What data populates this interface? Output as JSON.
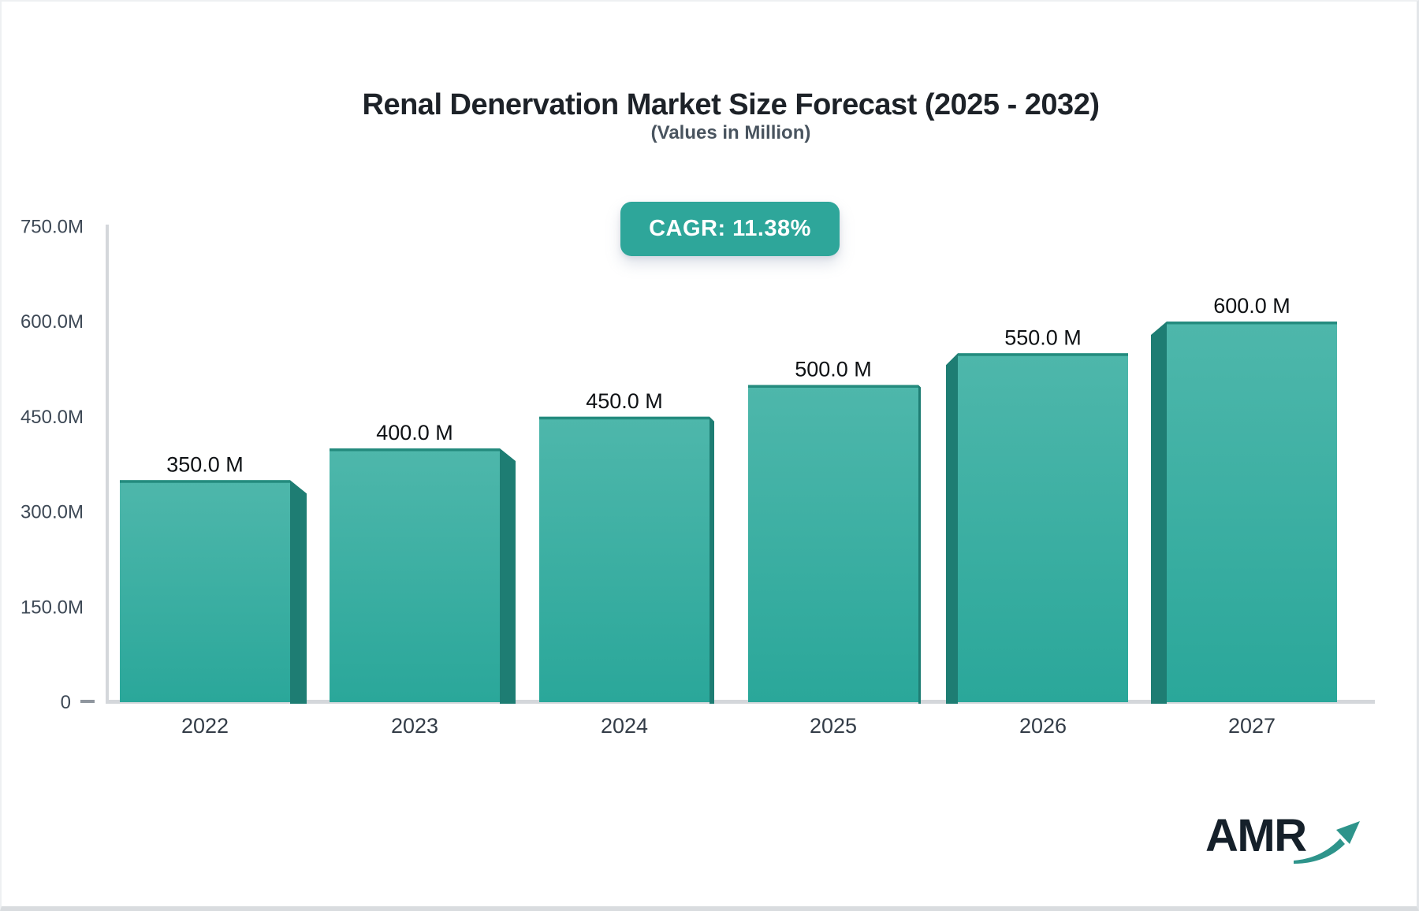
{
  "header": {
    "title": "Renal Denervation Market Size Forecast (2025 - 2032)",
    "subtitle": "(Values in Million)",
    "cagr_badge": "CAGR: 11.38%"
  },
  "chart_data": {
    "type": "bar",
    "title": "Renal Denervation Market Size Forecast (2025 - 2032)",
    "subtitle": "(Values in Million)",
    "categories": [
      "2022",
      "2023",
      "2024",
      "2025",
      "2026",
      "2027"
    ],
    "values": [
      350.0,
      400.0,
      450.0,
      500.0,
      550.0,
      600.0
    ],
    "value_labels": [
      "350.0 M",
      "400.0 M",
      "450.0 M",
      "500.0 M",
      "550.0 M",
      "600.0 M"
    ],
    "cagr_percent": 11.38,
    "xlabel": "",
    "ylabel": "",
    "ylim": [
      0,
      750
    ],
    "ytick_interval": 150,
    "ytick_labels": [
      "0",
      "150.0M",
      "300.0M",
      "450.0M",
      "600.0M",
      "750.0M"
    ],
    "grid": false,
    "legend": false,
    "colors": {
      "bar_top": "#4EB7AB",
      "bar_bottom": "#2AA79A",
      "bar_side": "#1E7D73",
      "bar_top_edge": "#208679",
      "axis_line": "#D4D7DB",
      "zero_tick_dash": "#8F969E",
      "tick_label": "#3E4956",
      "value_label": "#0E1114",
      "category_label": "#333C47",
      "badge_bg": "#2EA69A",
      "badge_text": "#FFFFFF"
    }
  },
  "logo": {
    "text": "AMR"
  }
}
